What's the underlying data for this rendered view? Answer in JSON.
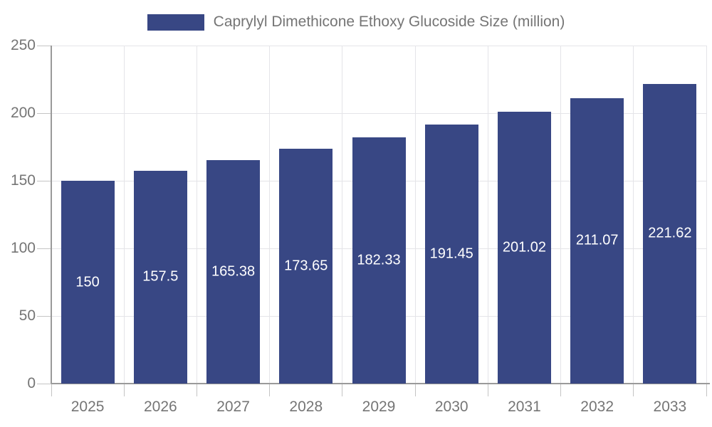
{
  "chart_data": {
    "type": "bar",
    "title": "Caprylyl Dimethicone Ethoxy Glucoside Size (million)",
    "legend": {
      "position": "top",
      "entries": [
        "Caprylyl Dimethicone Ethoxy Glucoside Size (million)"
      ]
    },
    "categories": [
      "2025",
      "2026",
      "2027",
      "2028",
      "2029",
      "2030",
      "2031",
      "2032",
      "2033"
    ],
    "values": [
      150,
      157.5,
      165.38,
      173.65,
      182.33,
      191.45,
      201.02,
      211.07,
      221.62
    ],
    "value_labels": [
      "150",
      "157.5",
      "165.38",
      "173.65",
      "182.33",
      "191.45",
      "201.02",
      "211.07",
      "221.62"
    ],
    "xlabel": "",
    "ylabel": "",
    "ylim": [
      0,
      250
    ],
    "yticks": [
      0,
      50,
      100,
      150,
      200,
      250
    ],
    "ytick_labels": [
      "0",
      "50",
      "100",
      "150",
      "200",
      "250"
    ],
    "grid": true,
    "colors": {
      "bar": "#384784",
      "value_label": "#ffffff",
      "axis_text": "#757575",
      "legend_text": "#757575",
      "grid_line": "#e4e4e8",
      "axis_line": "#9a9a9a",
      "tick_line": "#c4c4c4",
      "background": "#ffffff"
    }
  }
}
